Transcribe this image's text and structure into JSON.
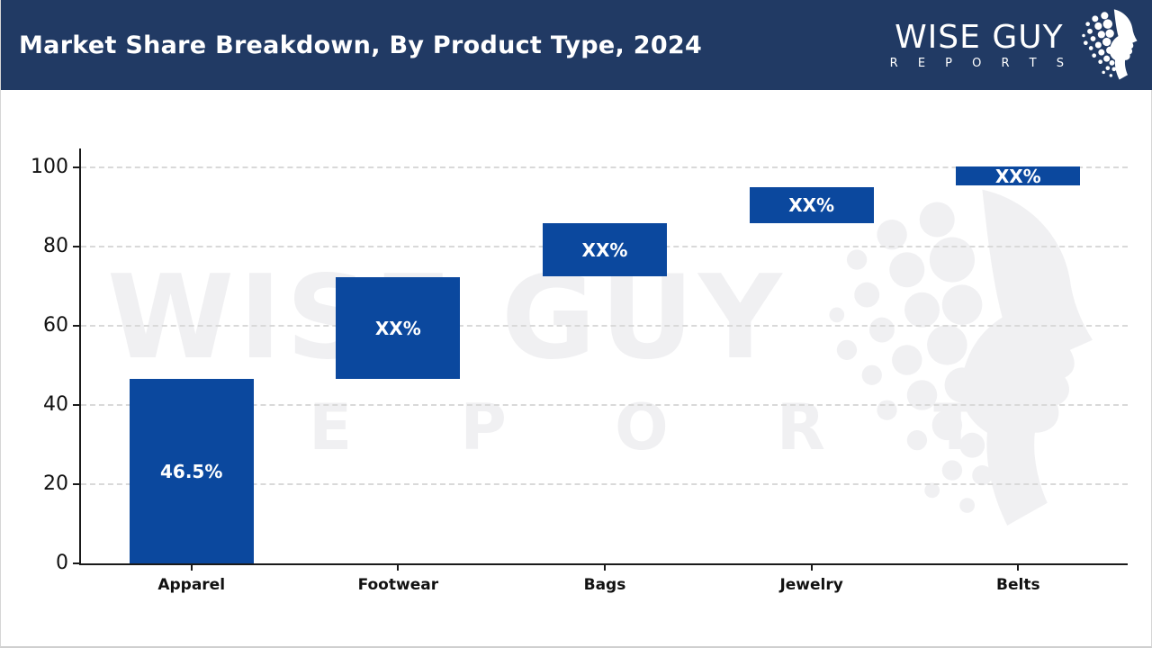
{
  "header": {
    "title": "Market Share Breakdown, By Product Type, 2024",
    "logo": {
      "line1": "WISE GUY",
      "line2": "R E P O R T S"
    }
  },
  "watermark": {
    "line1": "WISE GUY",
    "line2": "R E P O R T S"
  },
  "colors": {
    "header_bg": "#213a64",
    "bar": "#0b489e",
    "bar_label": "#ffffff",
    "grid": "#d9d9d9",
    "axis": "#1a1a1a",
    "watermark": "#f0f0f2"
  },
  "chart_data": {
    "type": "bar",
    "subtype": "waterfall",
    "title": "Market Share Breakdown, By Product Type, 2024",
    "categories": [
      "Apparel",
      "Footwear",
      "Bags",
      "Jewelry",
      "Belts"
    ],
    "segments": [
      {
        "category": "Apparel",
        "start": 0,
        "end": 46.5,
        "label": "46.5%"
      },
      {
        "category": "Footwear",
        "start": 46.5,
        "end": 72.3,
        "label": "XX%"
      },
      {
        "category": "Bags",
        "start": 72.6,
        "end": 85.8,
        "label": "XX%"
      },
      {
        "category": "Jewelry",
        "start": 86.0,
        "end": 95.1,
        "label": "XX%"
      },
      {
        "category": "Belts",
        "start": 95.4,
        "end": 100.2,
        "label": "XX%"
      }
    ],
    "xlabel": "",
    "ylabel": "",
    "ylim": [
      0,
      105
    ],
    "yticks": [
      0,
      20,
      40,
      60,
      80,
      100
    ],
    "grid": "horizontal-dashed",
    "legend": "none"
  }
}
